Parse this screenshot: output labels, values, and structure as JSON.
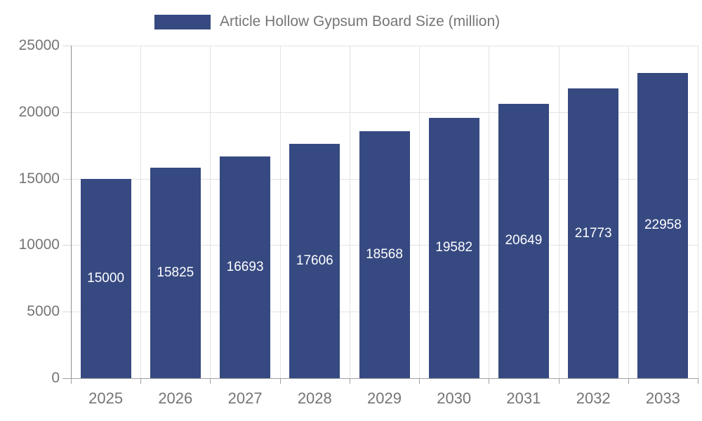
{
  "chart_data": {
    "type": "bar",
    "title": "Article Hollow Gypsum Board Size (million)",
    "legend_entries": [
      "Article Hollow Gypsum Board Size (million)"
    ],
    "legend_position": "top",
    "categories": [
      "2025",
      "2026",
      "2027",
      "2028",
      "2029",
      "2030",
      "2031",
      "2032",
      "2033"
    ],
    "values": [
      15000,
      15825,
      16693,
      17606,
      18568,
      19582,
      20649,
      21773,
      22958
    ],
    "xlabel": "",
    "ylabel": "",
    "ylim": [
      0,
      25000
    ],
    "yticks": [
      0,
      5000,
      10000,
      15000,
      20000,
      25000
    ],
    "grid": "on",
    "bar_labels_inside": true,
    "colors": {
      "bar": "#364981",
      "bar_label": "#ffffff",
      "axis_text": "#757575",
      "grid_line": "#e3e3e3",
      "minor_tick": "#d9d9d9",
      "axis_line": "#a0a0a0",
      "background": "#ffffff"
    }
  }
}
